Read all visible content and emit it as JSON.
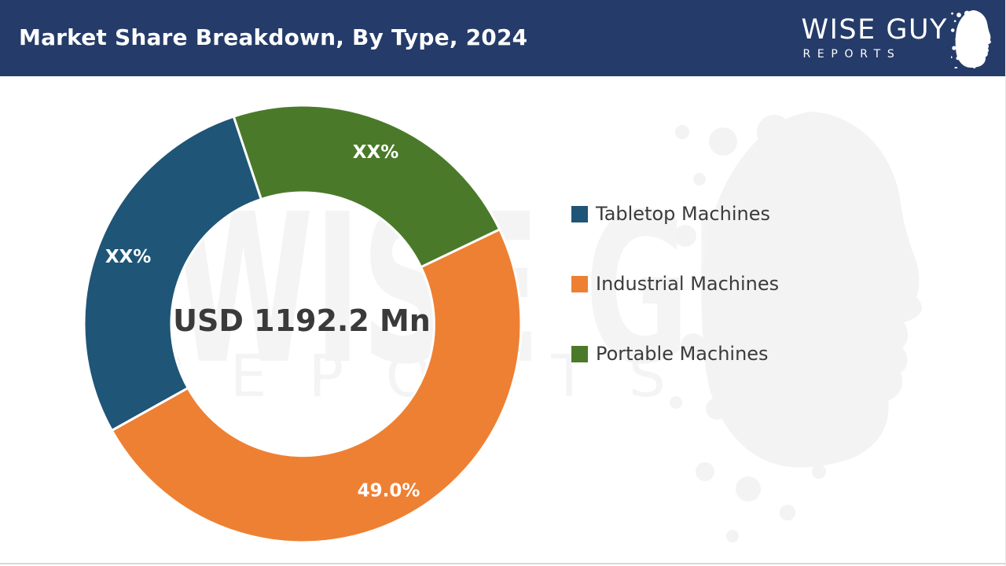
{
  "header": {
    "title": "Market Share Breakdown, By Type, 2024",
    "bg_color": "#253B69",
    "logo": {
      "line1": "WISE GUY",
      "line2": "REPORTS"
    }
  },
  "chart_data": {
    "type": "pie",
    "variant": "donut",
    "title": "Market Share Breakdown, By Type, 2024",
    "center_label": "USD 1192.2 Mn",
    "start_angle_deg": -18.4,
    "legend_position": "right",
    "segments": [
      {
        "name": "Portable Machines",
        "value_pct": 23.0,
        "label": "XX%",
        "color": "#4A7A29"
      },
      {
        "name": "Industrial Machines",
        "value_pct": 49.0,
        "label": "49.0%",
        "color": "#EE8033"
      },
      {
        "name": "Tabletop Machines",
        "value_pct": 28.0,
        "label": "XX%",
        "color": "#1F5577"
      }
    ],
    "legend": [
      {
        "label": "Tabletop Machines",
        "color": "#1F5577"
      },
      {
        "label": "Industrial Machines",
        "color": "#EE8033"
      },
      {
        "label": "Portable Machines",
        "color": "#4A7A29"
      }
    ]
  },
  "watermark": {
    "line1": "WISE GUY",
    "line2": "REPORTS"
  },
  "colors": {
    "header_bg": "#253B69",
    "slice_label_text": "#FFFFFF",
    "center_text": "#3A3A3A",
    "legend_text": "#3B3B3B",
    "watermark": "#F3F3F3"
  }
}
